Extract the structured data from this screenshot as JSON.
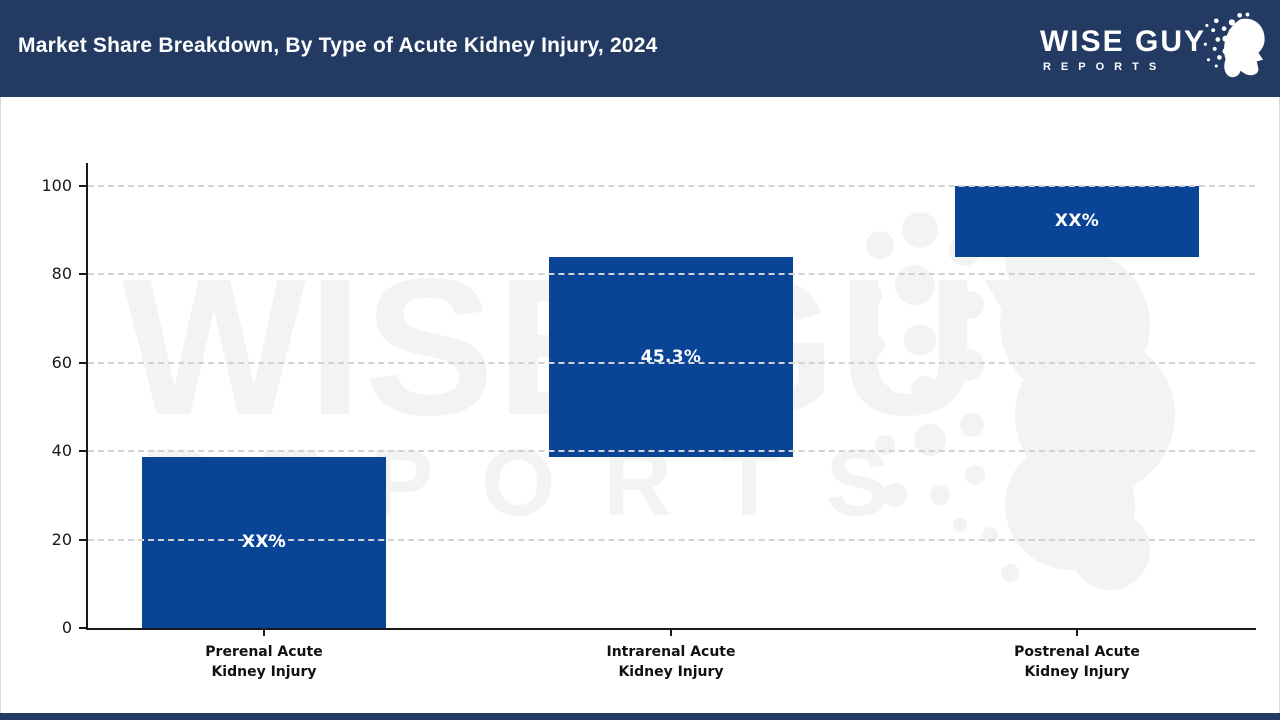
{
  "header": {
    "title": "Market Share Breakdown, By Type of Acute Kidney Injury, 2024",
    "logo": {
      "line1": "WISE GUY",
      "line2": "REPORTS"
    }
  },
  "watermark": {
    "line1": "WISE GUY",
    "line2": "REPORTS"
  },
  "colors": {
    "header_bg": "#233a63",
    "footer_bg": "#233a63",
    "bar_blue": "#0a4497",
    "watermark_gray": "#f3f3f3",
    "grid_gray": "#d2d2d2",
    "axis_black": "#1a1a1a",
    "page_bg": "#ffffff"
  },
  "chart_data": {
    "type": "bar",
    "subtype": "waterfall-floating-segments",
    "title": "Market Share Breakdown, By Type of Acute Kidney Injury, 2024",
    "categories": [
      [
        "Prerenal Acute",
        "Kidney Injury"
      ],
      [
        "Intrarenal Acute",
        "Kidney Injury"
      ],
      [
        "Postrenal Acute",
        "Kidney Injury"
      ]
    ],
    "segments": [
      {
        "from": 0,
        "to": 38.7,
        "label": "XX%"
      },
      {
        "from": 38.7,
        "to": 84,
        "label": "45.3%"
      },
      {
        "from": 84,
        "to": 100,
        "label": "XX%"
      }
    ],
    "yticks": [
      0,
      20,
      40,
      60,
      80,
      100
    ],
    "ylim": [
      0,
      100
    ],
    "grid": true,
    "grid_style": "dashed",
    "legend": false,
    "bar_color": "#0a4497",
    "bar_label_color": "#ffffff",
    "axis_color": "#1a1a1a",
    "grid_color": "#d2d2d2"
  }
}
